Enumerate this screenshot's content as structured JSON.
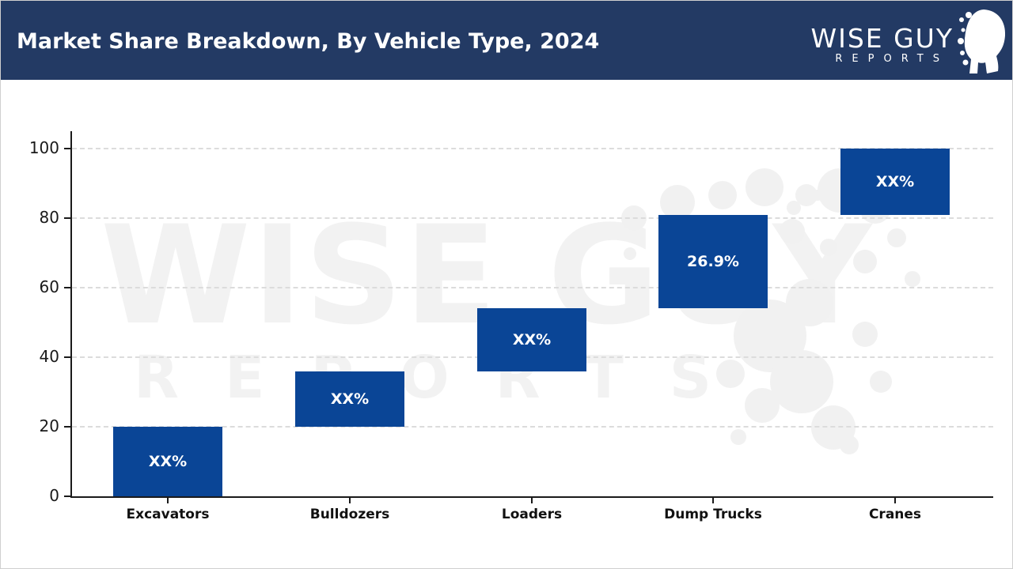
{
  "header": {
    "title": "Market Share Breakdown, By Vehicle Type, 2024",
    "bg_color": "#233a64",
    "logo": {
      "line1": "WISE GUY",
      "line2": "REPORTS"
    }
  },
  "watermark": {
    "line1": "WISE GUY",
    "line2": "REPORTS"
  },
  "chart_data": {
    "type": "bar",
    "subtype": "floating-segment-waterfall",
    "title": "Market Share Breakdown, By Vehicle Type, 2024",
    "categories": [
      "Excavators",
      "Bulldozers",
      "Loaders",
      "Dump Trucks",
      "Cranes"
    ],
    "segments": [
      {
        "category": "Excavators",
        "start": 0,
        "end": 20,
        "value": 20,
        "label": "XX%"
      },
      {
        "category": "Bulldozers",
        "start": 20,
        "end": 36,
        "value": 16,
        "label": "XX%"
      },
      {
        "category": "Loaders",
        "start": 36,
        "end": 54.1,
        "value": 18.1,
        "label": "XX%"
      },
      {
        "category": "Dump Trucks",
        "start": 54.1,
        "end": 81,
        "value": 26.9,
        "label": "26.9%"
      },
      {
        "category": "Cranes",
        "start": 81,
        "end": 100,
        "value": 19,
        "label": "XX%"
      }
    ],
    "yticks": [
      0,
      20,
      40,
      60,
      80,
      100
    ],
    "ylim": [
      0,
      105
    ],
    "xlabel": "",
    "ylabel": "",
    "grid": "horizontal-dashed",
    "legend": "none",
    "bar_color": "#0a4596",
    "bar_label_color": "#ffffff",
    "axis_color": "#1a1a1a"
  }
}
